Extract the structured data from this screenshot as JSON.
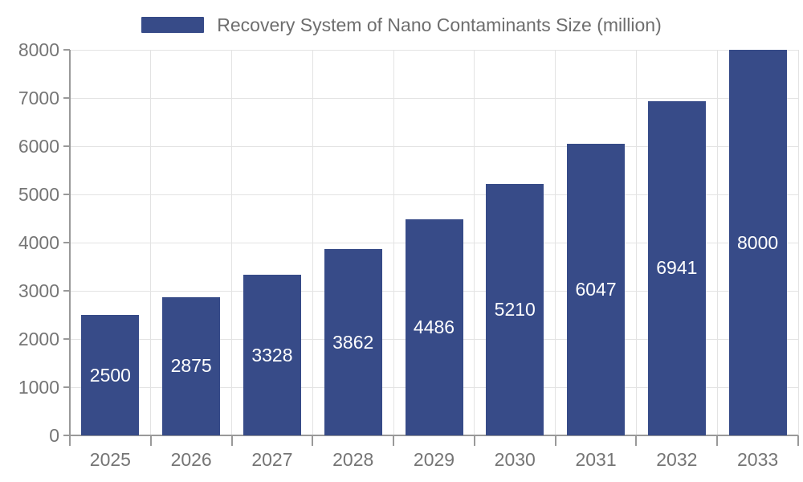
{
  "chart_data": {
    "type": "bar",
    "title": "Recovery System of Nano Contaminants Size (million)",
    "series_name": "Recovery System of Nano Contaminants Size (million)",
    "categories": [
      "2025",
      "2026",
      "2027",
      "2028",
      "2029",
      "2030",
      "2031",
      "2032",
      "2033"
    ],
    "values": [
      2500,
      2875,
      3328,
      3862,
      4486,
      5210,
      6047,
      6941,
      8000
    ],
    "xlabel": "",
    "ylabel": "",
    "ylim": [
      0,
      8000
    ],
    "ytick_step": 1000,
    "yticks": [
      0,
      1000,
      2000,
      3000,
      4000,
      5000,
      6000,
      7000,
      8000
    ],
    "grid": true,
    "legend_position": "top",
    "value_label_position": "inside-center",
    "colors": {
      "bar": "#374B88",
      "value_label": "#FFFFFF",
      "grid_line": "#E3E3E3",
      "axis_line": "#999999",
      "tick_label": "#757575",
      "legend_text": "#6E6E6E"
    }
  }
}
